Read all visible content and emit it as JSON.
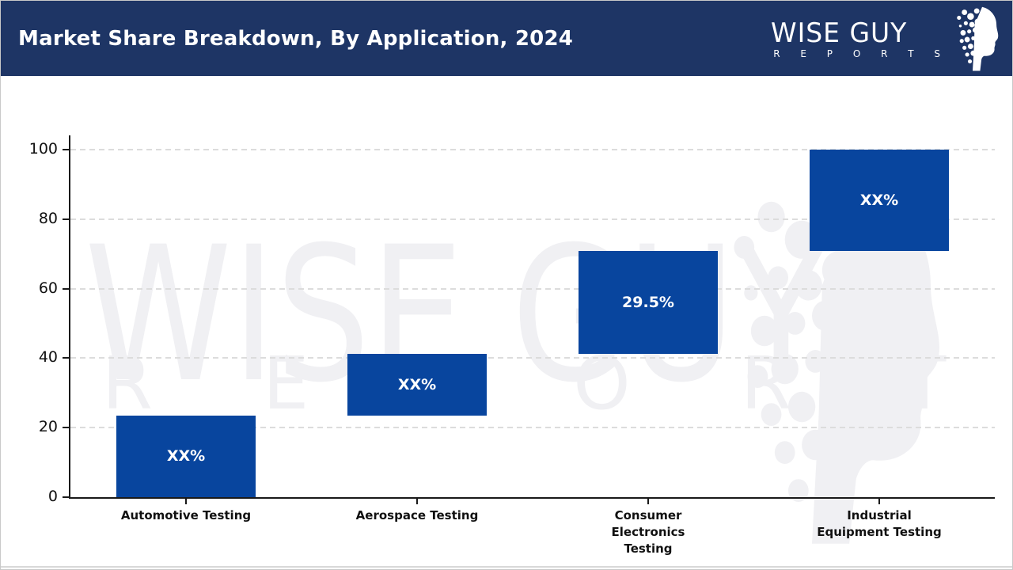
{
  "header": {
    "logo": {
      "wordmark": "WISE GUY",
      "tagline": "R E P O R T S"
    }
  },
  "watermark": {
    "wordmark": "WISE GUY",
    "tagline": "R E P O R T S"
  },
  "chart_data": {
    "type": "bar",
    "subtype": "waterfall-floating-bars",
    "title": "Market Share Breakdown, By Application, 2024",
    "categories": [
      "Automotive Testing",
      "Aerospace Testing",
      "Consumer Electronics Testing",
      "Industrial Equipment Testing"
    ],
    "category_label_lines": [
      [
        "Automotive Testing"
      ],
      [
        "Aerospace Testing"
      ],
      [
        "Consumer",
        "Electronics",
        "Testing"
      ],
      [
        "Industrial",
        "Equipment Testing"
      ]
    ],
    "series": [
      {
        "name": "Market share (%)",
        "bar_start": [
          0,
          23.5,
          41.3,
          70.8
        ],
        "bar_end": [
          23.5,
          41.3,
          70.8,
          100
        ]
      }
    ],
    "bar_labels": [
      "XX%",
      "XX%",
      "29.5%",
      "XX%"
    ],
    "xlabel": "",
    "ylabel": "",
    "ylim": [
      0,
      100
    ],
    "yticks": [
      0,
      20,
      40,
      60,
      80,
      100
    ],
    "grid": "horizontal-dashed",
    "legend": "none",
    "colors": {
      "bar": "#08459e",
      "bar_label": "#ffffff",
      "axis": "#1a1a1a",
      "gridline": "#dcdcdc",
      "header_bg": "#1e3565",
      "header_text": "#ffffff",
      "watermark": "#f0f0f3"
    }
  }
}
